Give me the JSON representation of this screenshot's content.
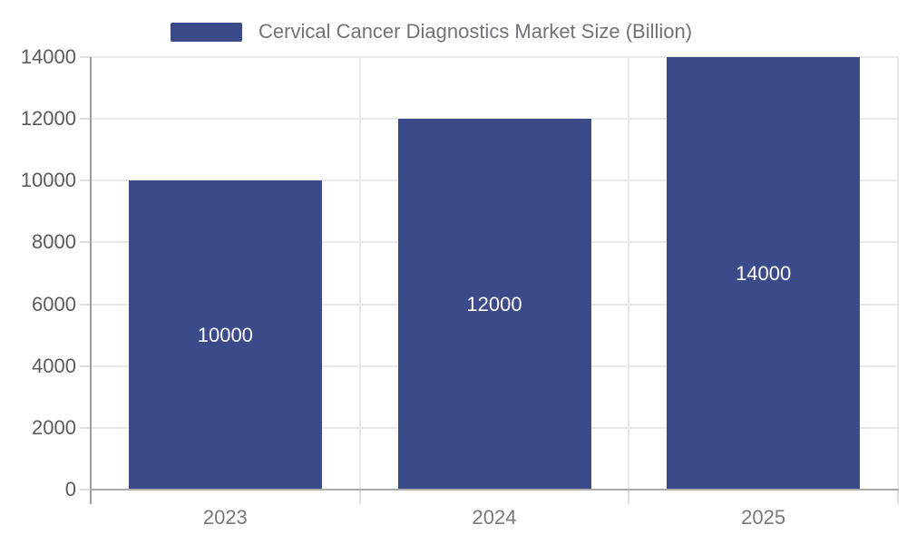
{
  "legend": {
    "items": [
      {
        "label": "Cervical Cancer Diagnostics Market Size (Billion)",
        "swatch_color": "#3B4A89"
      }
    ]
  },
  "chart_data": {
    "type": "bar",
    "title": "Cervical Cancer Diagnostics Market Size (Billion)",
    "categories": [
      "2023",
      "2024",
      "2025"
    ],
    "series": [
      {
        "name": "Cervical Cancer Diagnostics Market Size (Billion)",
        "values": [
          10000,
          12000,
          14000
        ],
        "color": "#3B4A89",
        "data_labels": [
          "10000",
          "12000",
          "14000"
        ],
        "data_label_position": "inside-center"
      }
    ],
    "xlabel": "",
    "ylabel": "",
    "ylim": [
      0,
      14000
    ],
    "yticks": [
      0,
      2000,
      4000,
      6000,
      8000,
      10000,
      12000,
      14000
    ],
    "grid": true,
    "legend_position": "top-center"
  },
  "colors": {
    "bar": "#3B4A89",
    "bar_label": "#FFFFFF",
    "grid_line": "#E9E9E9",
    "y_axis_line": "#9B9DA2",
    "x_axis_line": "#ABABAB",
    "tick": "#DCDFE5",
    "y_tick_label": "#595B5E",
    "x_tick_label": "#77797D",
    "legend_text": "#707479",
    "background": "#FFFFFF"
  }
}
